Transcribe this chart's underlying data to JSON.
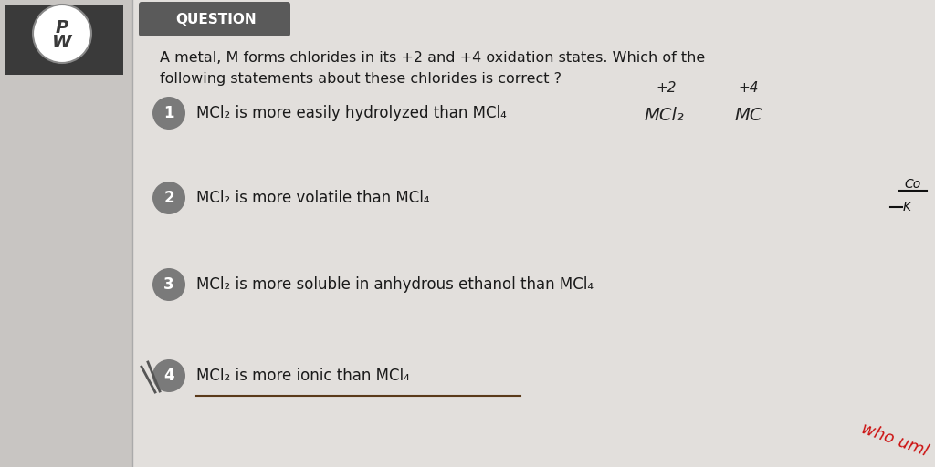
{
  "bg_left_color": "#c8c5c2",
  "bg_right_color": "#dddad7",
  "card_bg": "#e2dfdc",
  "header_bg": "#5a5a5a",
  "header_text": "QUESTION",
  "header_text_color": "#ffffff",
  "question_line1": "A metal, M forms chlorides in its +2 and +4 oxidation states. Which of the",
  "question_line2": "following statements about these chlorides is correct ?",
  "options": [
    "MCl₂ is more easily hydrolyzed than MCl₄",
    "MCl₂ is more volatile than MCl₄",
    "MCl₂ is more soluble in anhydrous ethanol than MCl₄",
    "MCl₂ is more ionic than MCl₄"
  ],
  "option_numbers": [
    "1",
    "2",
    "3",
    "4"
  ],
  "circle_color": "#7a7a7a",
  "text_color": "#1a1a1a",
  "handwrite_color": "#222222",
  "right_note_color": "#111111",
  "underline_color": "#5a3a1a",
  "red_text_color": "#cc1111",
  "logo_dark": "#3a3a3a",
  "logo_mid": "#5a5a5a"
}
